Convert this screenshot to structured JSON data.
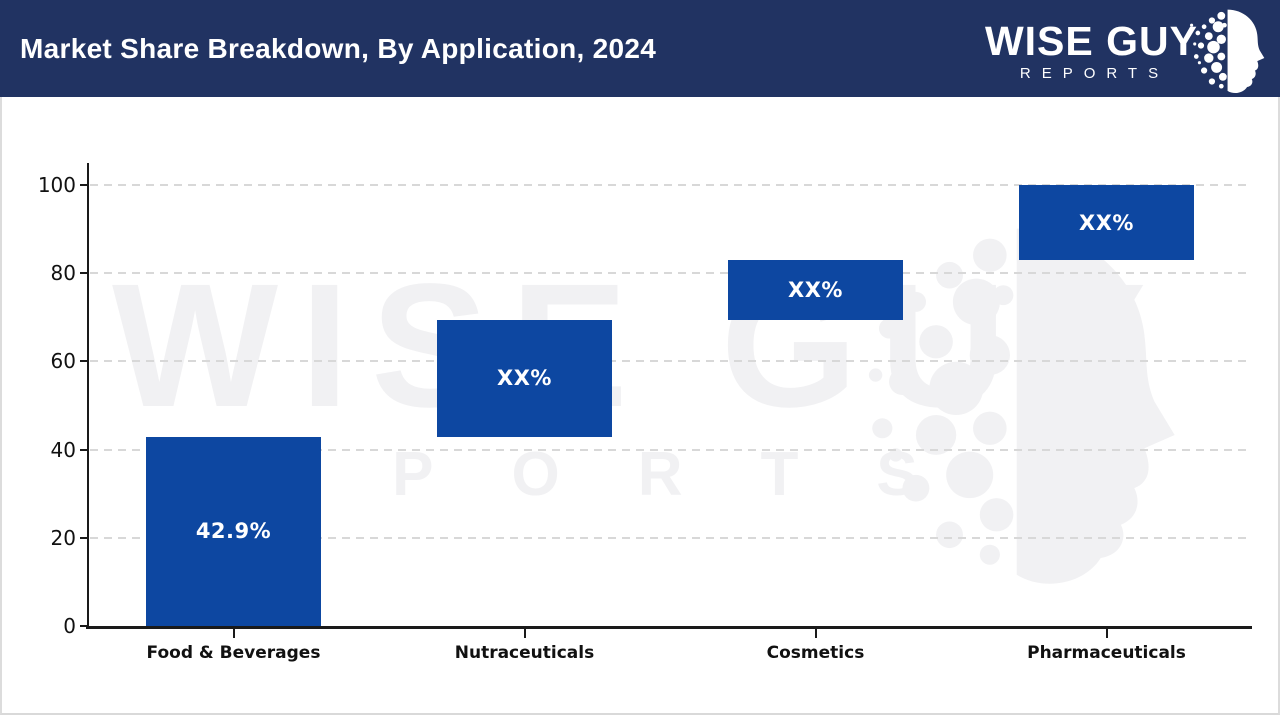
{
  "header": {
    "title": "Market Share Breakdown, By Application, 2024",
    "logo": {
      "wordmark": "WISE GUY",
      "subtitle": "REPORTS"
    }
  },
  "watermark": {
    "wordmark": "WISE GUY",
    "subtitle": "REPORTS"
  },
  "colors": {
    "header_bg": "#213362",
    "bar": "#0d47a1",
    "bar_label": "#ffffff",
    "grid": "#d8d8d8",
    "axis": "#1a1a1a",
    "watermark": "#f1f1f3"
  },
  "chart_data": {
    "type": "bar",
    "subtype": "waterfall-segmented",
    "title": "Market Share Breakdown, By Application, 2024",
    "categories": [
      "Food & Beverages",
      "Nutraceuticals",
      "Cosmetics",
      "Pharmaceuticals"
    ],
    "segments": [
      {
        "category": "Food & Beverages",
        "start": 0,
        "end": 42.9,
        "label": "42.9%"
      },
      {
        "category": "Nutraceuticals",
        "start": 42.9,
        "end": 69.4,
        "label": "XX%"
      },
      {
        "category": "Cosmetics",
        "start": 69.4,
        "end": 83.0,
        "label": "XX%"
      },
      {
        "category": "Pharmaceuticals",
        "start": 83.0,
        "end": 100,
        "label": "XX%"
      }
    ],
    "y_ticks": [
      0,
      20,
      40,
      60,
      80,
      100
    ],
    "ylim": [
      0,
      105
    ],
    "xlabel": "",
    "ylabel": "",
    "grid": "horizontal-dashed",
    "legend": "none",
    "bar_color": "#0d47a1",
    "bar_label_color": "#ffffff"
  }
}
